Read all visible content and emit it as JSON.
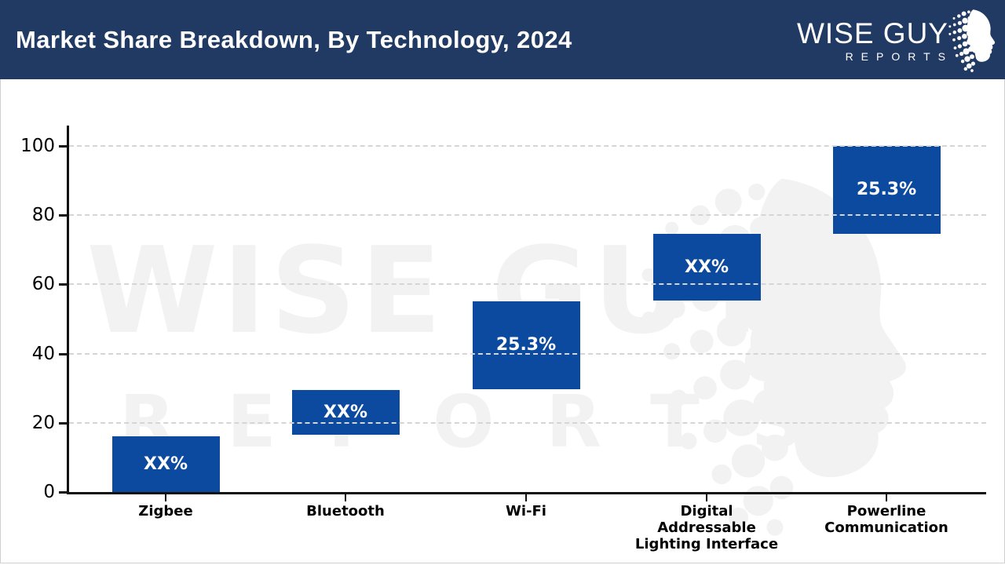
{
  "header": {
    "title": "Market Share Breakdown, By Technology, 2024",
    "bg_color": "#203a64",
    "logo": {
      "line1": "WISE GUY",
      "line2": "REPORTS"
    }
  },
  "watermark": {
    "line1": "WISE GUY",
    "line2": "REPORTS"
  },
  "chart_data": {
    "type": "bar",
    "variant": "waterfall",
    "title": "Market Share Breakdown, By Technology, 2024",
    "categories": [
      "Zigbee",
      "Bluetooth",
      "Wi-Fi",
      "Digital Addressable Lighting Interface",
      "Powerline Communication"
    ],
    "category_label_lines": [
      [
        "Zigbee"
      ],
      [
        "Bluetooth"
      ],
      [
        "Wi-Fi"
      ],
      [
        "Digital",
        "Addressable",
        "Lighting Interface"
      ],
      [
        "Powerline",
        "Communication"
      ]
    ],
    "segments": [
      {
        "category": "Zigbee",
        "start": 0,
        "end": 16,
        "label": "XX%"
      },
      {
        "category": "Bluetooth",
        "start": 16.5,
        "end": 29.5,
        "label": "XX%"
      },
      {
        "category": "Wi-Fi",
        "start": 29.8,
        "end": 55.1,
        "label": "25.3%"
      },
      {
        "category": "Digital Addressable Lighting Interface",
        "start": 55.4,
        "end": 74.6,
        "label": "XX%"
      },
      {
        "category": "Powerline Communication",
        "start": 74.7,
        "end": 100,
        "label": "25.3%"
      }
    ],
    "y_ticks": [
      0,
      20,
      40,
      60,
      80,
      100
    ],
    "ylim": [
      0,
      100
    ],
    "grid": "horizontal-dashed",
    "legend": "none",
    "colors": {
      "bar": "#0b4a9e",
      "bar_label": "#ffffff",
      "axis": "#111111",
      "grid": "#d5d5d5",
      "tick_label": "#000000",
      "header_bg": "#203a64",
      "watermark": "#f2f2f2"
    }
  }
}
